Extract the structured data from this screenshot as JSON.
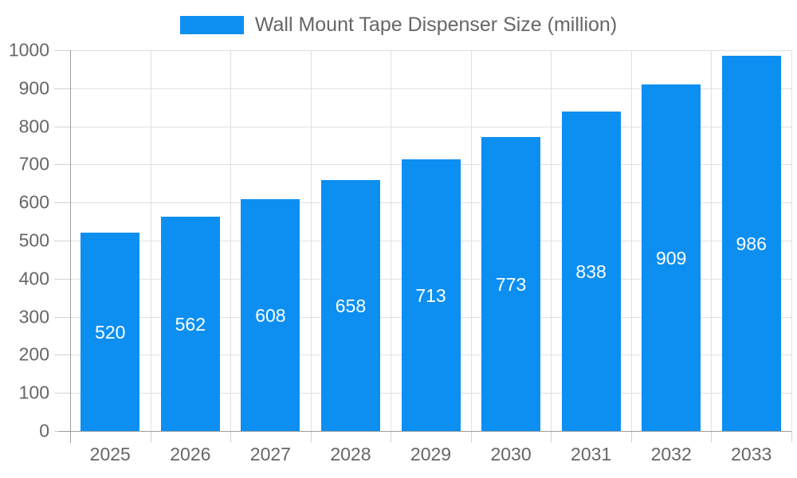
{
  "chart_data": {
    "type": "bar",
    "title": "Wall Mount Tape Dispenser Size (million)",
    "categories": [
      "2025",
      "2026",
      "2027",
      "2028",
      "2029",
      "2030",
      "2031",
      "2032",
      "2033"
    ],
    "series": [
      {
        "name": "Wall Mount Tape Dispenser Size (million)",
        "values": [
          520,
          562,
          608,
          658,
          713,
          773,
          838,
          909,
          986
        ]
      }
    ],
    "xlabel": "",
    "ylabel": "",
    "ylim": [
      0,
      1000
    ],
    "ytick_interval": 100,
    "ytick_labels": [
      "0",
      "100",
      "200",
      "300",
      "400",
      "500",
      "600",
      "700",
      "800",
      "900",
      "1000"
    ],
    "grid": true,
    "legend_position": "top",
    "value_labels": "inside-center",
    "colors": {
      "bar": "#0d8ff2",
      "grid": "#e0e0e0",
      "tick": "#d2d2d2",
      "axis": "#9e9e9e",
      "axis_text": "#666666",
      "value_text": "#ffffff",
      "background": "#ffffff"
    }
  }
}
